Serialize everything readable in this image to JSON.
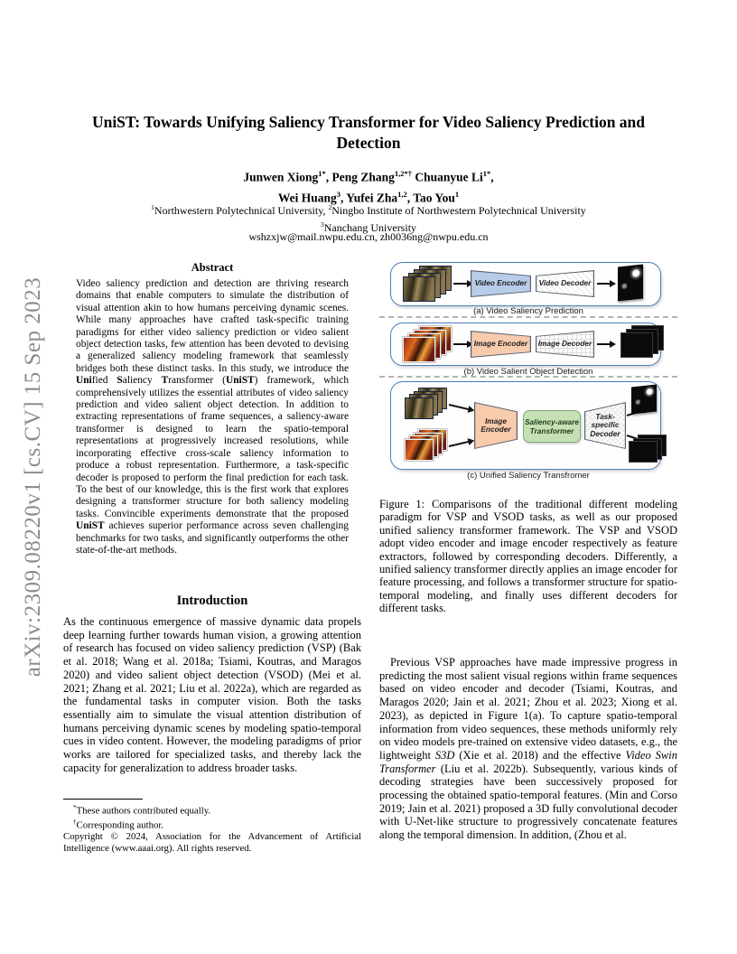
{
  "watermark": {
    "text": "arXiv:2309.08220v1  [cs.CV]  15 Sep 2023"
  },
  "header": {
    "title_lines": [
      "UniST: Towards Unifying Saliency Transformer for Video Saliency Prediction and",
      "Detection"
    ],
    "author_line1": [
      {
        "name": "Junwen Xiong",
        "sup": "1*",
        "after": ", "
      },
      {
        "name": "Peng Zhang",
        "sup": "1,2*†",
        "after": " "
      },
      {
        "name": "Chuanyue Li",
        "sup": "1*",
        "after": ","
      }
    ],
    "author_line2": [
      {
        "name": "Wei Huang",
        "sup": "3",
        "after": ", "
      },
      {
        "name": "Yufei Zha",
        "sup": "1,2",
        "after": ", "
      },
      {
        "name": "Tao You",
        "sup": "1",
        "after": ""
      }
    ],
    "affiliations_line1": [
      {
        "sup": "1",
        "text": "Northwestern Polytechnical University, "
      },
      {
        "sup": "2",
        "text": "Ningbo Institute of Northwestern Polytechnical University"
      }
    ],
    "affiliations_line2": [
      {
        "sup": "3",
        "text": "Nanchang University"
      }
    ],
    "emails": "wshzxjw@mail.nwpu.edu.cn, zh0036ng@nwpu.edu.cn"
  },
  "abstract": {
    "heading": "Abstract",
    "segments": [
      {
        "t": "Video saliency prediction and detection are thriving research domains that enable computers to simulate the distribution of visual attention akin to how humans perceiving dynamic scenes. While many approaches have crafted task-specific training paradigms for either video saliency prediction or video salient object detection tasks, few attention has been devoted to devising a generalized saliency modeling framework that seamlessly bridges both these distinct tasks. In this study, we introduce the "
      },
      {
        "t": "Uni",
        "b": true
      },
      {
        "t": "fied "
      },
      {
        "t": "S",
        "b": true
      },
      {
        "t": "aliency "
      },
      {
        "t": "T",
        "b": true
      },
      {
        "t": "ransformer ("
      },
      {
        "t": "UniST",
        "b": true
      },
      {
        "t": ") framework, which comprehensively utilizes the essential attributes of video saliency prediction and video salient object detection. In addition to extracting representations of frame sequences, a saliency-aware transformer is designed to learn the spatio-temporal representations at progressively increased resolutions, while incorporating effective cross-scale saliency information to produce a robust representation. Furthermore, a task-specific decoder is proposed to perform the final prediction for each task. To the best of our knowledge, this is the first work that explores designing a transformer structure for both saliency modeling tasks. Convincible experiments demonstrate that the proposed "
      },
      {
        "t": "UniST",
        "b": true
      },
      {
        "t": " achieves superior performance across seven challenging benchmarks for two tasks, and significantly outperforms the other state-of-the-art methods."
      }
    ]
  },
  "introduction": {
    "heading": "Introduction",
    "paragraph": "As the continuous emergence of massive dynamic data propels deep learning further towards human vision, a growing attention of research has focused on video saliency prediction (VSP) (Bak et al. 2018; Wang et al. 2018a; Tsiami, Koutras, and Maragos 2020) and video salient object detection (VSOD) (Mei et al. 2021; Zhang et al. 2021; Liu et al. 2022a), which are regarded as the fundamental tasks in computer vision. Both the tasks essentially aim to simulate the visual attention distribution of humans perceiving dynamic scenes by modeling spatio-temporal cues in video content. However, the modeling paradigms of prior works are tailored for specialized tasks, and thereby lack the capacity for generalization to address broader tasks."
  },
  "footnotes": {
    "equal_marker": "*",
    "equal": "These authors contributed equally.",
    "corresponding_marker": "†",
    "corresponding": "Corresponding author.",
    "copyright": "Copyright © 2024, Association for the Advancement of Artificial Intelligence (www.aaai.org). All rights reserved."
  },
  "figure1": {
    "panel_a": {
      "label": "(a) Video Saliency Prediction",
      "encoder": "Video Encoder",
      "decoder": "Video Decoder"
    },
    "panel_b": {
      "label": "(b) Video Salient Object Detection",
      "encoder": "Image Encoder",
      "decoder": "Image Decoder"
    },
    "panel_c": {
      "label": "(c) Unified Saliency Transfromer",
      "encoder": "Image\nEncoder",
      "transformer": "Saliency-aware\nTransformer",
      "decoder": "Task-specific\nDecoder"
    },
    "colors": {
      "container_border": "#4a7ebb",
      "video_encoder_fill": "#b8cbe8",
      "image_encoder_fill": "#f8cbad",
      "transformer_fill": "#c5e0b4",
      "transformer_border": "#86a97d"
    },
    "caption": "Figure 1: Comparisons of the traditional different modeling paradigm for VSP and VSOD tasks, as well as our proposed unified saliency transformer framework. The VSP and VSOD adopt video encoder and image encoder respectively as feature extractors, followed by corresponding decoders. Differently, a unified saliency transformer directly applies an image encoder for feature processing, and follows a transformer structure for spatio-temporal modeling, and finally uses different decoders for different tasks."
  },
  "right_column": {
    "paragraph_segments": [
      {
        "t": "Previous VSP approaches have made impressive progress in predicting the most salient visual regions within frame sequences based on video encoder and decoder (Tsiami, Koutras, and Maragos 2020; Jain et al. 2021; Zhou et al. 2023; Xiong et al. 2023), as depicted in Figure 1(a). To capture spatio-temporal information from video sequences, these methods uniformly rely on video models pre-trained on extensive video datasets, e.g., the lightweight "
      },
      {
        "t": "S3D",
        "i": true
      },
      {
        "t": " (Xie et al. 2018) and the effective "
      },
      {
        "t": "Video Swin Transformer",
        "i": true
      },
      {
        "t": " (Liu et al. 2022b). Subsequently, various kinds of decoding strategies have been successively proposed for processing the obtained spatio-temporal features. (Min and Corso 2019; Jain et al. 2021) proposed a 3D fully convolutional decoder with U-Net-like structure to progressively concatenate features along the temporal dimension. In addition, (Zhou et al."
      }
    ]
  }
}
